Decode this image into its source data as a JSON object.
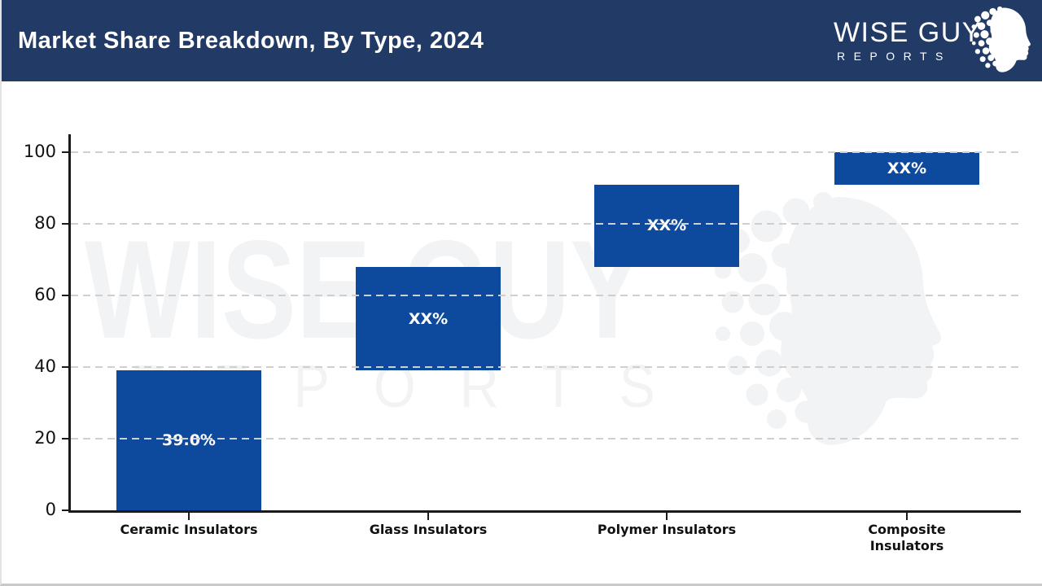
{
  "header": {
    "title": "Market Share Breakdown, By Type, 2024",
    "logo": {
      "line1": "WISE GUY",
      "line2": "REPORTS"
    }
  },
  "watermark": {
    "line1": "WISE GUY",
    "line2": "REPORTS"
  },
  "colors": {
    "header_bg": "#223a66",
    "bar": "#0d4a9e",
    "grid": "#cfcfcf",
    "axis": "#1a1a1a",
    "tick_text": "#111111",
    "bar_label_text": "#ffffff",
    "watermark": "#f2f3f5",
    "background": "#ffffff"
  },
  "chart_data": {
    "type": "bar",
    "subtype": "waterfall",
    "title": "Market Share Breakdown, By Type, 2024",
    "categories": [
      "Ceramic Insulators",
      "Glass Insulators",
      "Polymer Insulators",
      "Composite\nInsulators"
    ],
    "segments": [
      {
        "category": "Ceramic Insulators",
        "start": 0,
        "end": 39,
        "label": "39.0%"
      },
      {
        "category": "Glass Insulators",
        "start": 39,
        "end": 68,
        "label": "XX%"
      },
      {
        "category": "Polymer Insulators",
        "start": 68,
        "end": 91,
        "label": "XX%"
      },
      {
        "category": "Composite Insulators",
        "start": 91,
        "end": 100,
        "label": "XX%"
      }
    ],
    "yticks": [
      0,
      20,
      40,
      60,
      80,
      100
    ],
    "ylim": [
      0,
      105
    ],
    "xlabel": "",
    "ylabel": "",
    "grid": "horizontal-dashed",
    "legend": "none"
  }
}
